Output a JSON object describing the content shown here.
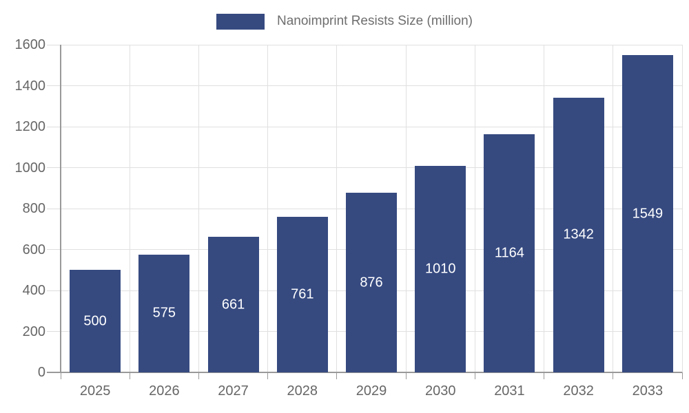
{
  "chart_data": {
    "type": "bar",
    "title": "Nanoimprint Resists Size (million)",
    "legend": {
      "label": "Nanoimprint Resists Size (million)",
      "position": "top-center"
    },
    "categories": [
      "2025",
      "2026",
      "2027",
      "2028",
      "2029",
      "2030",
      "2031",
      "2032",
      "2033"
    ],
    "values": [
      500,
      575,
      661,
      761,
      876,
      1010,
      1164,
      1342,
      1549
    ],
    "xlabel": "",
    "ylabel": "",
    "ylim": [
      0,
      1600
    ],
    "yticks": [
      0,
      200,
      400,
      600,
      800,
      1000,
      1200,
      1400,
      1600
    ],
    "grid": true,
    "bar_width_fraction": 0.74,
    "colors": {
      "bar": "#364A80",
      "bar_label": "#FFFFFF",
      "axis_line": "#999999",
      "grid_line": "#E0E0E0",
      "tick_mark": "#DDDDDD",
      "axis_text": "#666666",
      "legend_text": "#6E6E6E",
      "background": "#FFFFFF"
    }
  }
}
